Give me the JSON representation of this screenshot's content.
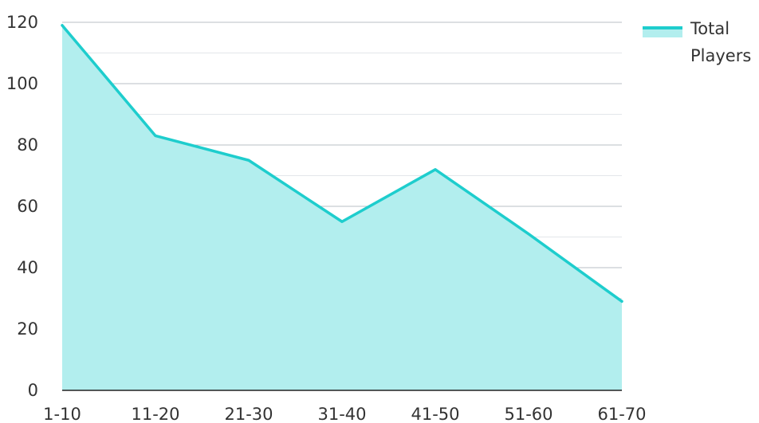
{
  "colors": {
    "line": "#1ecdcd",
    "area": "#b2eeee",
    "grid_major": "#b8bfc6",
    "grid_minor": "#e3e6ea",
    "axis": "#222222",
    "text": "#333333"
  },
  "legend": {
    "label_line1": "Total",
    "label_line2": "Players"
  },
  "chart_data": {
    "type": "area",
    "categories": [
      "1-10",
      "11-20",
      "21-30",
      "31-40",
      "41-50",
      "51-60",
      "61-70"
    ],
    "series": [
      {
        "name": "Total Players",
        "values": [
          119,
          83,
          75,
          55,
          72,
          51,
          29
        ]
      }
    ],
    "ylim": [
      0,
      120
    ],
    "yticks": [
      0,
      20,
      40,
      60,
      80,
      100,
      120
    ],
    "grid": true,
    "legend_position": "top-right"
  }
}
